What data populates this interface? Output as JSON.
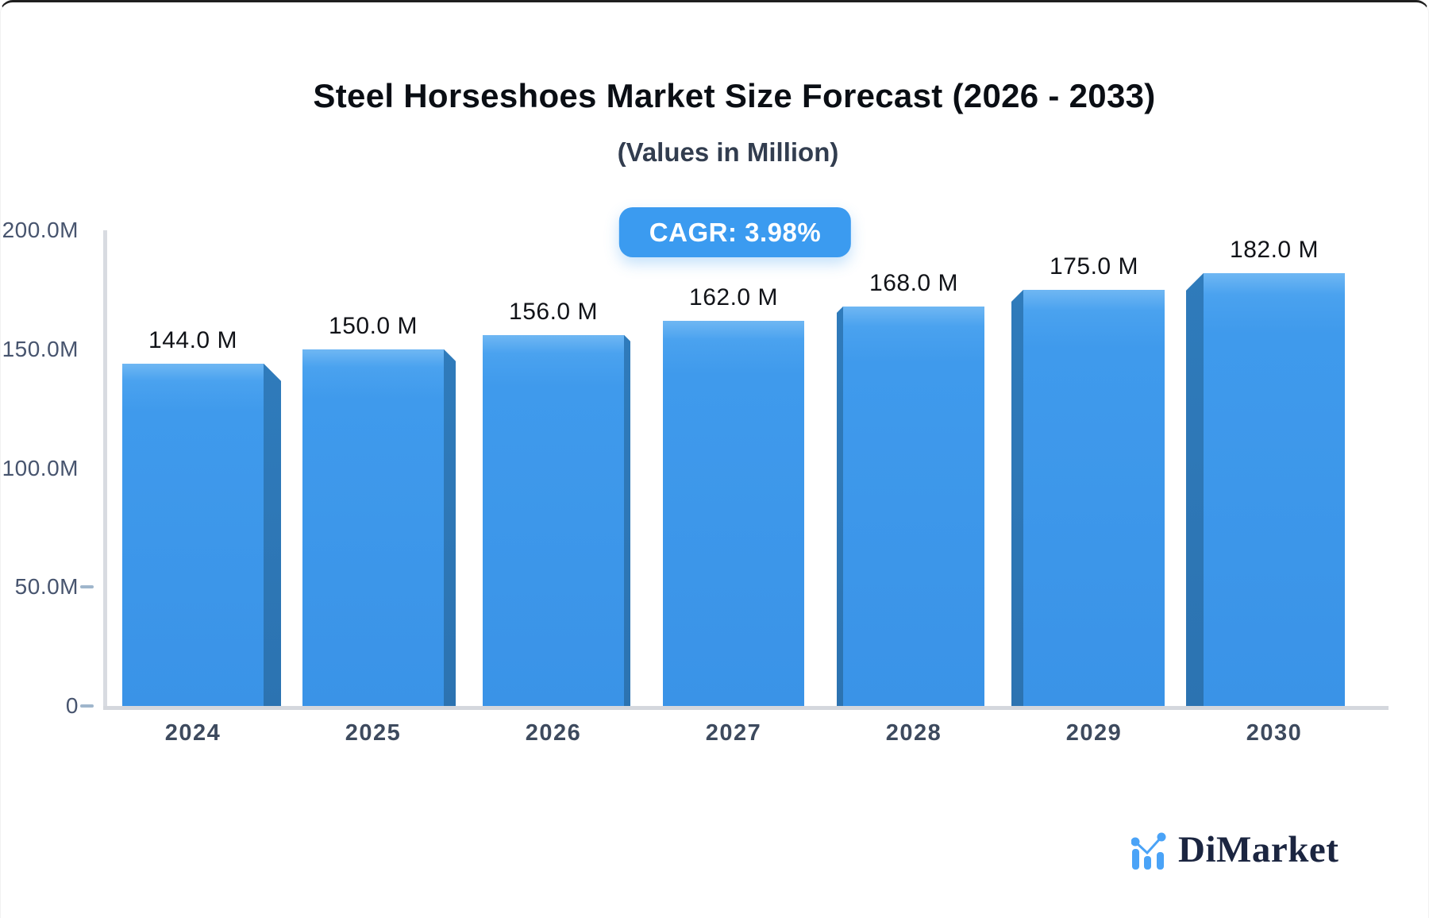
{
  "header": {
    "title": "Steel Horseshoes Market Size Forecast (2026 - 2033)",
    "subtitle": "(Values in Million)"
  },
  "badge": {
    "cagr_label": "CAGR: 3.98%"
  },
  "brand": {
    "name": "DiMarket"
  },
  "colors": {
    "accent_blue": "#3b9bf0",
    "bar_face": "#3e99ec",
    "bar_face_highlight": "#6fb7f3",
    "bar_side": "#2d76b5",
    "axis_gray": "#d8dbe1",
    "tick_dash": "#9fb6cc",
    "label_slate": "#3d4a5e",
    "logo_navy": "#1b2540",
    "logo_icon_blue": "#4aa3f7"
  },
  "chart_data": {
    "type": "bar",
    "categories": [
      "2024",
      "2025",
      "2026",
      "2027",
      "2028",
      "2029",
      "2030"
    ],
    "values": [
      144,
      150,
      156,
      162,
      168,
      175,
      182
    ],
    "value_labels": [
      "144.0 M",
      "150.0 M",
      "156.0 M",
      "162.0 M",
      "168.0 M",
      "175.0 M",
      "182.0 M"
    ],
    "unit": "Million",
    "title": "Steel Horseshoes Market Size Forecast (2026 - 2033)",
    "xlabel": "",
    "ylabel": "",
    "ylim": [
      0,
      200
    ],
    "y_ticks": [
      {
        "value": 0,
        "label": "0",
        "dash": true
      },
      {
        "value": 50,
        "label": "50.0M",
        "dash": true
      },
      {
        "value": 100,
        "label": "100.0M",
        "dash": false
      },
      {
        "value": 150,
        "label": "150.0M",
        "dash": false
      },
      {
        "value": 200,
        "label": "200.0M",
        "dash": false
      }
    ],
    "grid": false,
    "legend": "none",
    "style_note": "pseudo-3D bars: side panel faces right for bars left of center, left for bars right of center"
  }
}
